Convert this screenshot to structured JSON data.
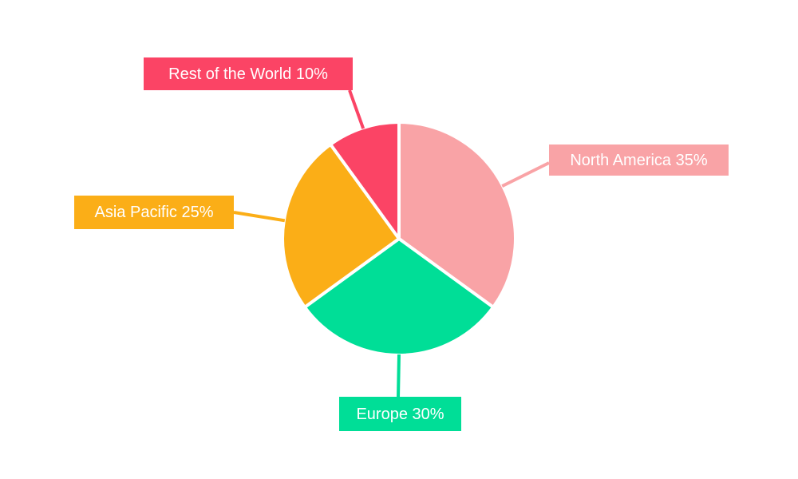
{
  "chart_data": {
    "type": "pie",
    "categories": [
      "North America",
      "Europe",
      "Asia Pacific",
      "Rest of the World"
    ],
    "values": [
      35,
      30,
      25,
      10
    ],
    "unit": "%",
    "labels": [
      "North America 35%",
      "Europe 30%",
      "Asia Pacific 25%",
      "Rest of the World 10%"
    ],
    "colors": [
      "#F9A3A6",
      "#00DE97",
      "#FBAE17",
      "#FB4465"
    ],
    "start_angle": "top",
    "direction": "clockwise",
    "legend_position": "none",
    "background": "#FFFFFF",
    "slice_border_color": "#FFFFFF",
    "label_text_color": "#FFFFFF"
  }
}
